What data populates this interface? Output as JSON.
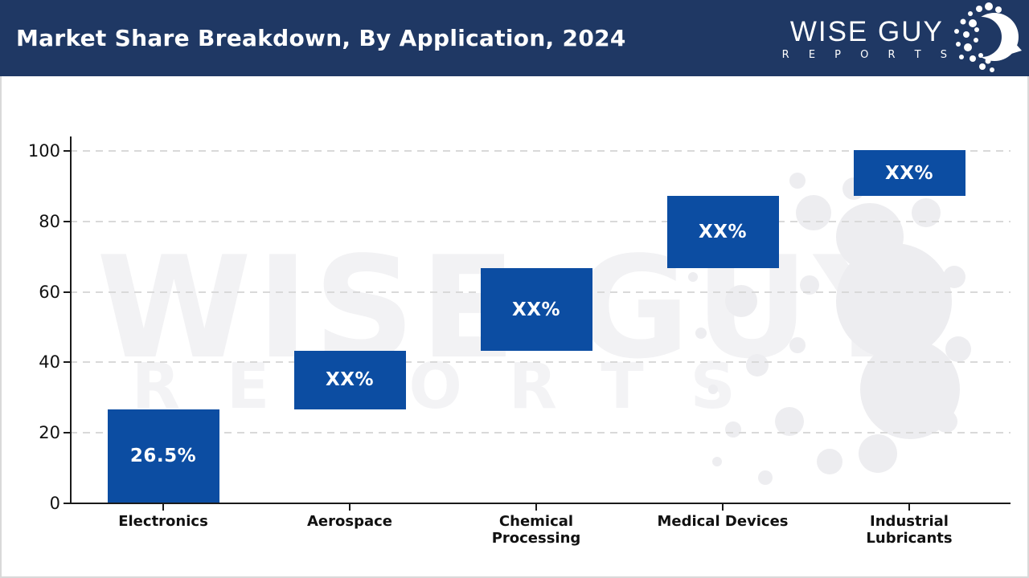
{
  "header": {
    "title": "Market Share Breakdown, By Application, 2024",
    "bg_color": "#1f3864",
    "logo": {
      "brand": "WISE GUY",
      "sub": "R E P O R T S"
    }
  },
  "watermark": {
    "brand": "WISE GUY",
    "sub": "R E P O R T S"
  },
  "chart_data": {
    "type": "bar",
    "subtype": "waterfall",
    "title": "Market Share Breakdown, By Application, 2024",
    "categories": [
      "Electronics",
      "Aerospace",
      "Chemical\nProcessing",
      "Medical Devices",
      "Industrial\nLubricants"
    ],
    "segments": [
      {
        "category": "Electronics",
        "start": 0,
        "end": 26.5,
        "label": "26.5%"
      },
      {
        "category": "Aerospace",
        "start": 26.5,
        "end": 43,
        "label": "XX%"
      },
      {
        "category": "Chemical Processing",
        "start": 43,
        "end": 66.5,
        "label": "XX%"
      },
      {
        "category": "Medical Devices",
        "start": 66.5,
        "end": 87,
        "label": "XX%"
      },
      {
        "category": "Industrial Lubricants",
        "start": 87,
        "end": 100,
        "label": "XX%"
      }
    ],
    "ylim": [
      0,
      100
    ],
    "yticks": [
      0,
      20,
      40,
      60,
      80,
      100
    ],
    "bar_color": "#0c4da2",
    "bar_label_color": "#ffffff",
    "grid": "horizontal-dashed",
    "grid_color": "#d9d9d9",
    "legend": "none",
    "xlabel": "",
    "ylabel": ""
  }
}
